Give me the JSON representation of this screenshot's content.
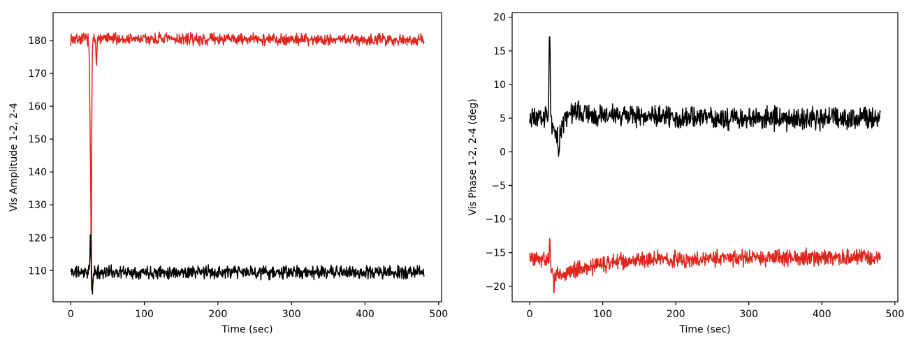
{
  "figure": {
    "background": "#ffffff",
    "text_color": "#000000",
    "spine_color": "#000000"
  },
  "chart_data": [
    {
      "type": "line",
      "title": "",
      "xlabel": "Time (sec)",
      "ylabel": "Vis Amplitude 1-2, 2-4",
      "xlim": [
        -24,
        504
      ],
      "ylim": [
        100.5,
        188.5
      ],
      "xticks": [
        0,
        100,
        200,
        300,
        400,
        500
      ],
      "yticks": [
        110,
        120,
        130,
        140,
        150,
        160,
        170,
        180
      ],
      "grid": false,
      "legend": "none",
      "x_start": 0,
      "x_end": 480,
      "x_step": 0.5,
      "series": [
        {
          "name": "amplitude-2-4-red",
          "color": "#e1261d",
          "seed": 7,
          "baseline": [
            [
              0,
              180.5
            ],
            [
              480,
              180.3
            ]
          ],
          "noise_amp": 2.2,
          "spikes": [
            {
              "t": 27.2,
              "peak": 140.0,
              "width": 1.6
            },
            {
              "t": 27.9,
              "peak": 134.3,
              "width": 0.45
            },
            {
              "t": 35.0,
              "peak": 172.5,
              "width": 0.7
            }
          ]
        },
        {
          "name": "amplitude-1-2-black",
          "color": "#000000",
          "seed": 11,
          "baseline": [
            [
              0,
              109.6
            ],
            [
              480,
              109.4
            ]
          ],
          "noise_amp": 2.4,
          "spikes": [
            {
              "t": 26.8,
              "peak": 120.5,
              "width": 0.9
            },
            {
              "t": 29.5,
              "peak": 104.4,
              "width": 1.0
            }
          ]
        }
      ]
    },
    {
      "type": "line",
      "title": "",
      "xlabel": "Time (sec)",
      "ylabel": "Vis Phase 1-2, 2-4 (deg)",
      "xlim": [
        -24,
        504
      ],
      "ylim": [
        -22.3,
        20.7
      ],
      "xticks": [
        0,
        100,
        200,
        300,
        400,
        500
      ],
      "yticks": [
        -20,
        -15,
        -10,
        -5,
        0,
        5,
        10,
        15,
        20
      ],
      "grid": false,
      "legend": "none",
      "x_start": 0,
      "x_end": 480,
      "x_step": 0.5,
      "series": [
        {
          "name": "phase-1-2-black",
          "color": "#000000",
          "seed": 3,
          "baseline": [
            [
              0,
              5.2
            ],
            [
              20,
              4.7
            ],
            [
              26,
              5.0
            ],
            [
              34,
              3.2
            ],
            [
              40,
              2.4
            ],
            [
              46,
              4.6
            ],
            [
              60,
              5.8
            ],
            [
              120,
              5.4
            ],
            [
              300,
              4.9
            ],
            [
              480,
              5.0
            ]
          ],
          "noise_amp": 2.0,
          "spikes": [
            {
              "t": 27.3,
              "peak": 18.7,
              "width": 1.1
            },
            {
              "t": 40.0,
              "peak": 0.6,
              "width": 1.4
            }
          ]
        },
        {
          "name": "phase-2-4-red",
          "color": "#e1261d",
          "seed": 5,
          "baseline": [
            [
              0,
              -15.8
            ],
            [
              20,
              -15.9
            ],
            [
              26,
              -16.2
            ],
            [
              32,
              -18.0
            ],
            [
              45,
              -18.2
            ],
            [
              60,
              -17.6
            ],
            [
              100,
              -16.7
            ],
            [
              150,
              -16.0
            ],
            [
              300,
              -15.8
            ],
            [
              480,
              -15.6
            ]
          ],
          "noise_amp": 1.5,
          "spikes": [
            {
              "t": 27.5,
              "peak": -12.6,
              "width": 0.8
            },
            {
              "t": 33.5,
              "peak": -20.3,
              "width": 0.9
            }
          ]
        }
      ]
    }
  ]
}
